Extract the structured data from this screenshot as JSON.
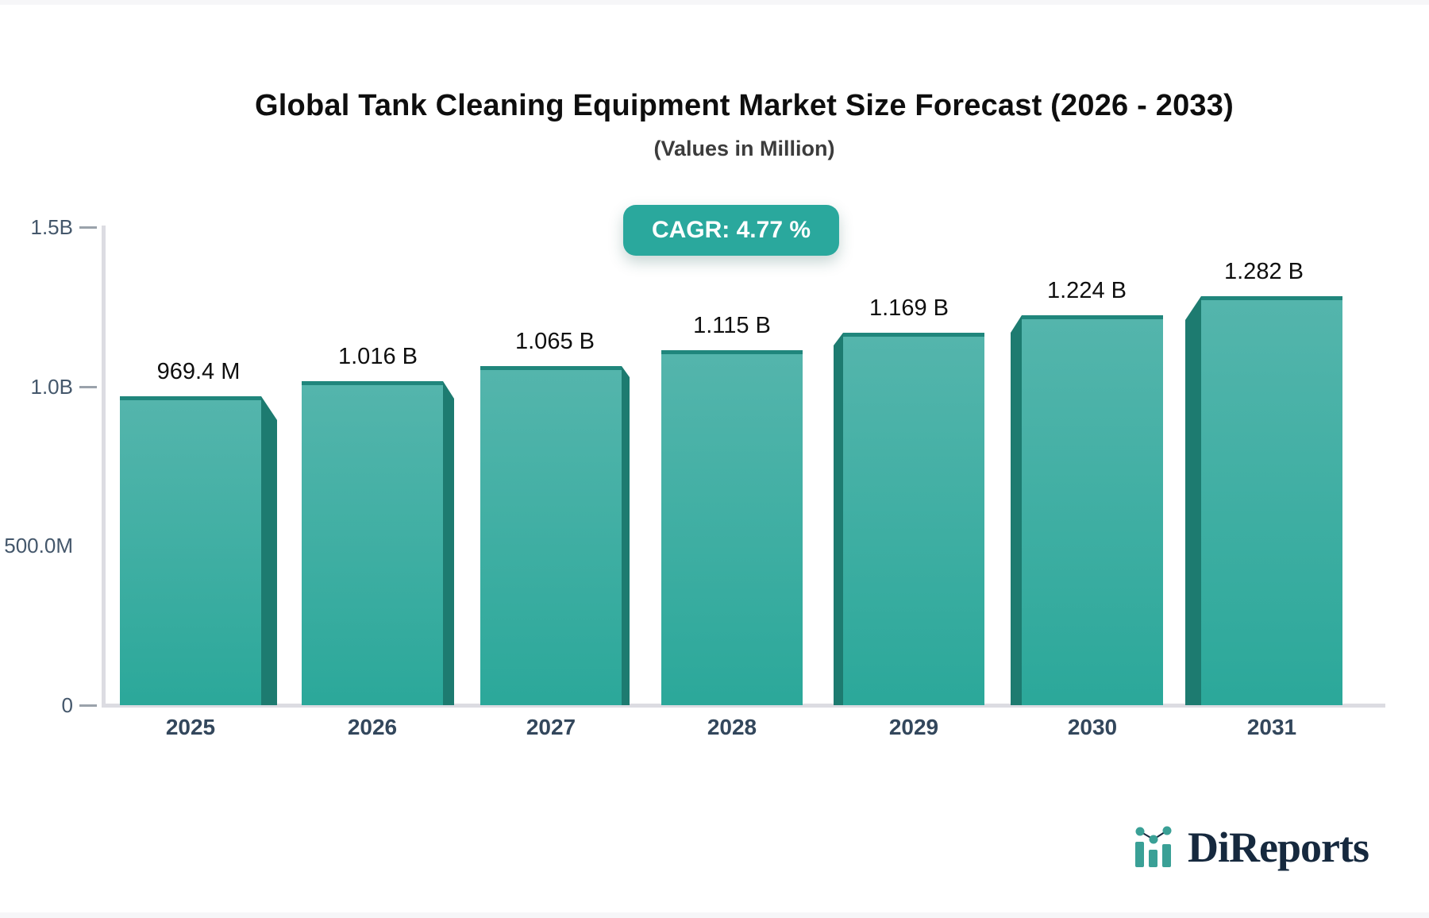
{
  "header": {
    "title": "Global Tank Cleaning Equipment Market Size Forecast (2026 - 2033)",
    "subtitle": "(Values in Million)",
    "cagr_badge": "CAGR: 4.77 %"
  },
  "chart_data": {
    "type": "bar",
    "title": "Global Tank Cleaning Equipment Market Size Forecast (2026 - 2033)",
    "subtitle": "(Values in Million)",
    "categories": [
      "2025",
      "2026",
      "2027",
      "2028",
      "2029",
      "2030",
      "2031"
    ],
    "values": [
      969.4,
      1016,
      1065,
      1115,
      1169,
      1224,
      1282
    ],
    "value_labels": [
      "969.4 M",
      "1.016 B",
      "1.065 B",
      "1.115 B",
      "1.169 B",
      "1.224 B",
      "1.282 B"
    ],
    "unit": "Million",
    "xlabel": "",
    "ylabel": "",
    "ylim": [
      0,
      1500
    ],
    "yticks": [
      {
        "label": "1.5B",
        "value": 1500,
        "tick": true
      },
      {
        "label": "1.0B",
        "value": 1000,
        "tick": true
      },
      {
        "label": "500.0M",
        "value": 500,
        "tick": false
      },
      {
        "label": "0",
        "value": 0,
        "tick": true
      }
    ],
    "grid": false,
    "legend": false,
    "annotations": [
      "CAGR: 4.77 %"
    ],
    "bar_style": "3d-extruded-perspective"
  },
  "colors": {
    "bar_face_top": "#54b5ac",
    "bar_face_bottom": "#2ba89a",
    "bar_top_edge": "#20867c",
    "bar_side": "#1d7b70",
    "badge_bg": "#2aa89d",
    "axis_line": "#dcdce2",
    "tick": "#9aa2ab",
    "axis_label": "#44576b",
    "year_label": "#33475c",
    "logo_navy": "#16293e",
    "logo_teal": "#3aa096"
  },
  "branding": {
    "logo_text": "DiReports"
  }
}
